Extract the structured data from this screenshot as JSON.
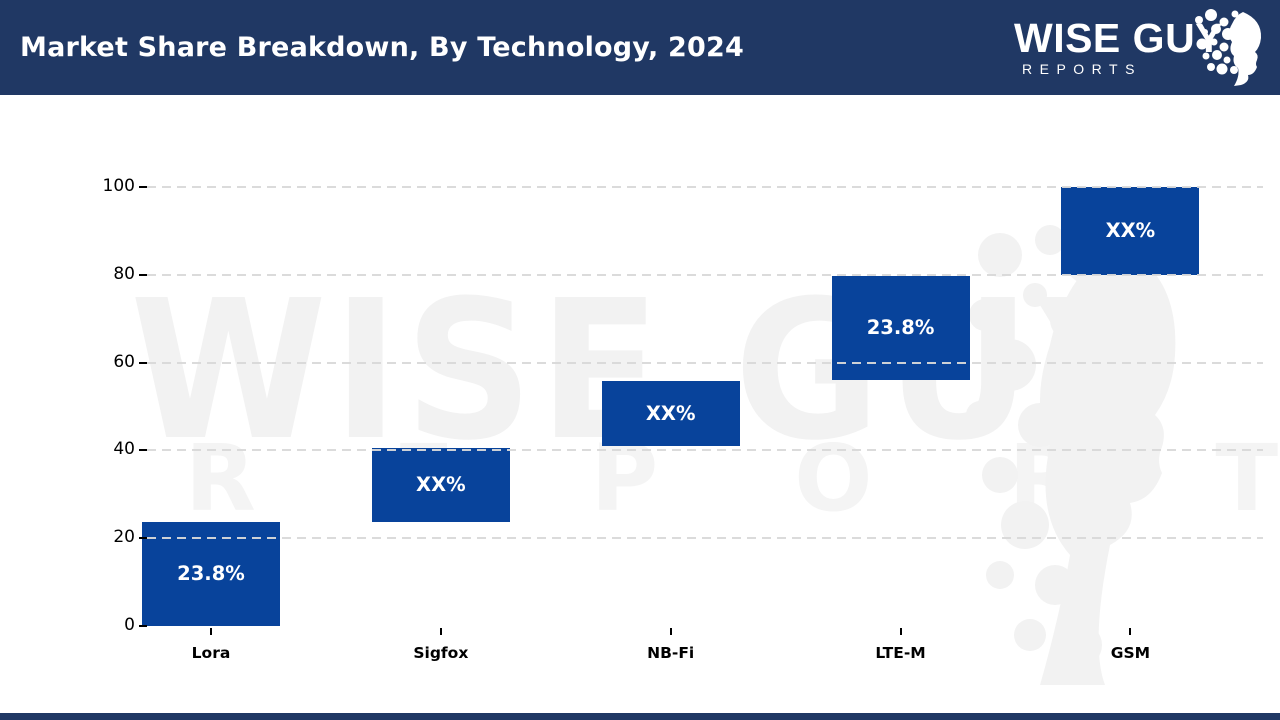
{
  "header": {
    "title": "Market Share Breakdown, By Technology, 2024",
    "background_color": "#203864"
  },
  "logo": {
    "name": "wise-guy-reports-logo",
    "line1": "WISE GUY",
    "line2": "R E P O R T S"
  },
  "watermark": {
    "line1": "WISE GUY",
    "line2": "R E P O R T S"
  },
  "chart_data": {
    "type": "bar",
    "subtype": "floating-segment-waterfall",
    "title": "Market Share Breakdown, By Technology, 2024",
    "xlabel": "",
    "ylabel": "",
    "categories": [
      "Lora",
      "Sigfox",
      "NB-Fi",
      "LTE-M",
      "GSM"
    ],
    "segments": [
      {
        "category": "Lora",
        "start": 0,
        "end": 23.8,
        "label": "23.8%"
      },
      {
        "category": "Sigfox",
        "start": 23.8,
        "end": 40.5,
        "label": "XX%"
      },
      {
        "category": "NB-Fi",
        "start": 41.0,
        "end": 55.7,
        "label": "XX%"
      },
      {
        "category": "LTE-M",
        "start": 56.0,
        "end": 79.8,
        "label": "23.8%"
      },
      {
        "category": "GSM",
        "start": 80.0,
        "end": 100,
        "label": "XX%"
      }
    ],
    "yticks": [
      0,
      20,
      40,
      60,
      80,
      100
    ],
    "ylim": [
      0,
      104
    ],
    "grid": "dashed horizontal, drawn above bars",
    "legend": "none",
    "bar_color": "#08439b",
    "bar_label_color": "#ffffff",
    "grid_color": "#d9d9d9",
    "axis_color": "#000000"
  }
}
